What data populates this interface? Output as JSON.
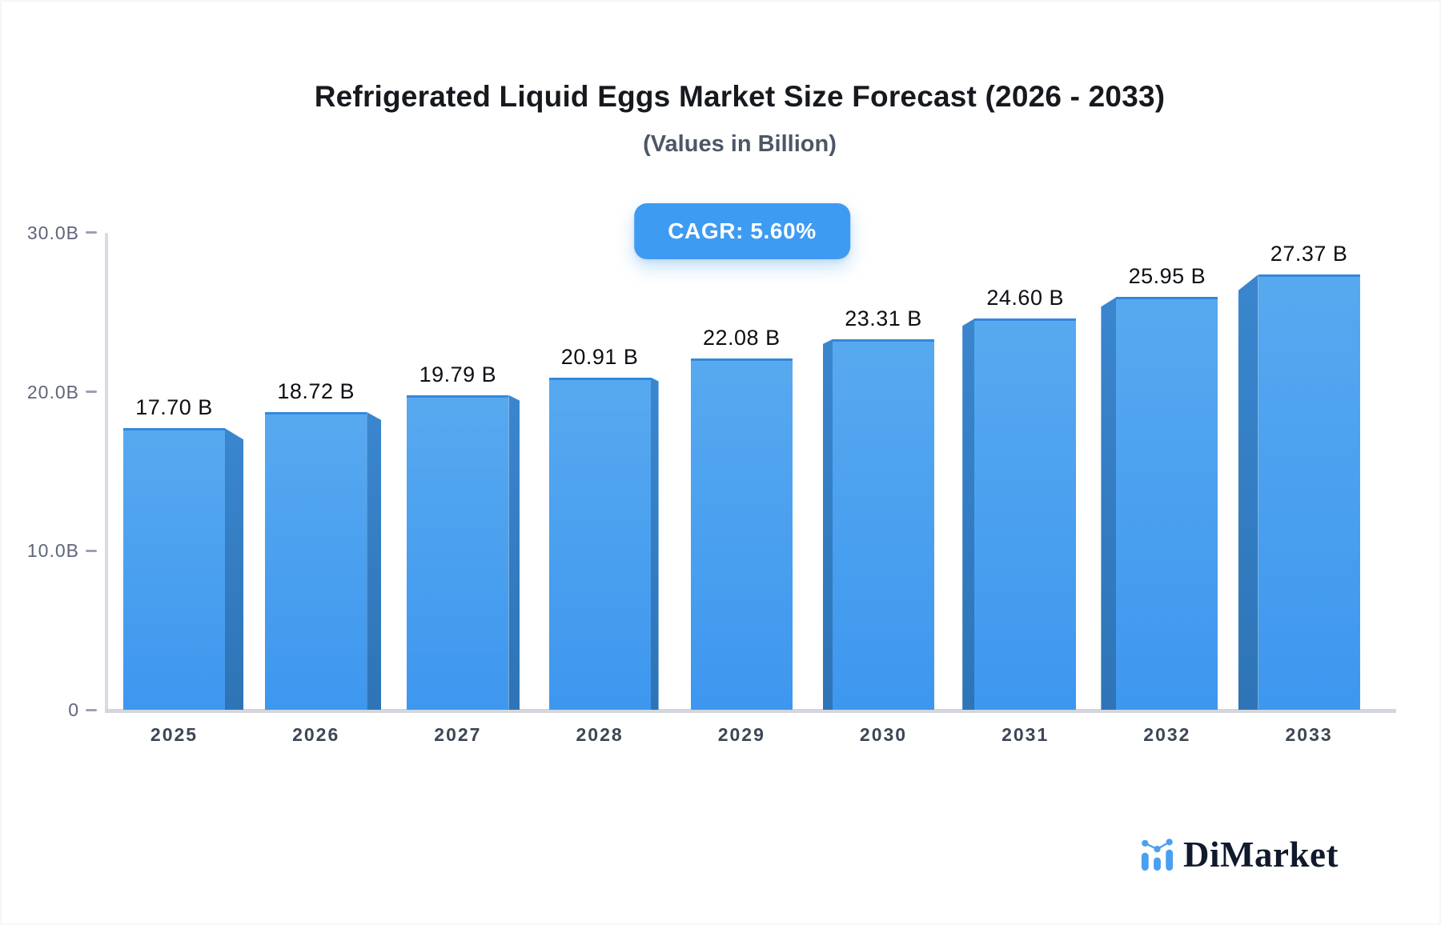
{
  "title": "Refrigerated Liquid Eggs Market Size Forecast (2026 - 2033)",
  "subtitle": "(Values in Billion)",
  "cagr": {
    "label": "CAGR: 5.60%"
  },
  "brand": {
    "name": "DiMarket",
    "icon": "bar-line-chart-icon"
  },
  "colors": {
    "badge_bg": "#3e9bf2",
    "bar_front_top": "#57a9ef",
    "bar_front_bottom": "#3e97ef",
    "bar_top_edge": "#3488db",
    "bar_side_top": "#3a86cf",
    "bar_side_bottom": "#2e74b6",
    "brand_blue": "#4aa0f0",
    "brand_text": "#111a2c"
  },
  "chart_data": {
    "type": "bar",
    "style": "3d-perspective-bars",
    "title": "Refrigerated Liquid Eggs Market Size Forecast (2026 - 2033)",
    "subtitle": "(Values in Billion)",
    "categories": [
      "2025",
      "2026",
      "2027",
      "2028",
      "2029",
      "2030",
      "2031",
      "2032",
      "2033"
    ],
    "values": [
      17.7,
      18.72,
      19.79,
      20.91,
      22.08,
      23.31,
      24.6,
      25.95,
      27.37
    ],
    "bar_labels": [
      "17.70 B",
      "18.72 B",
      "19.79 B",
      "20.91 B",
      "22.08 B",
      "23.31 B",
      "24.60 B",
      "25.95 B",
      "27.37 B"
    ],
    "xlabel": "",
    "ylabel": "",
    "ylim": [
      0,
      30
    ],
    "yticks": [
      {
        "value": 30,
        "label": "30.0B"
      },
      {
        "value": 20,
        "label": "20.0B"
      },
      {
        "value": 10,
        "label": "10.0B"
      },
      {
        "value": 0,
        "label": "0"
      }
    ],
    "grid": false,
    "legend": null
  }
}
